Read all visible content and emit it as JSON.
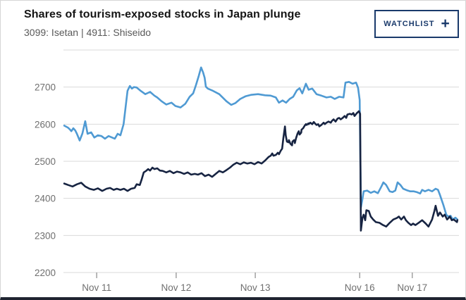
{
  "header": {
    "title": "Shares of tourism-exposed stocks in Japan plunge",
    "subtitle": "3099: Isetan | 4911: Shiseido",
    "watchlist_button": {
      "label": "WATCHLIST",
      "plus_glyph": "+"
    }
  },
  "colors": {
    "accent_navy": "#1a3a6b",
    "series_blue": "#4f9ad3",
    "series_dark_navy": "#172442",
    "gridline": "#d9d9d9",
    "axis_text": "#6f6f6f",
    "tick_mark": "#8a8a8a",
    "title_text": "#141414",
    "subtitle_text": "#595959",
    "bottom_bar": "#1f2430"
  },
  "chart_data": {
    "type": "line",
    "title": "Shares of tourism-exposed stocks in Japan plunge",
    "xlabel": "",
    "ylabel": "",
    "ylim": [
      2200,
      2800
    ],
    "grid": "horizontal",
    "legend_position": "none",
    "y_ticks": [
      2200,
      2300,
      2400,
      2500,
      2600,
      2700
    ],
    "x_axis_note": "intraday prices, Nov 10 - Nov 17 trading sessions; pos = fraction of plot width",
    "x_ticks": [
      {
        "label": "Nov 11",
        "pos": 0.084
      },
      {
        "label": "Nov 12",
        "pos": 0.285
      },
      {
        "label": "Nov 13",
        "pos": 0.485
      },
      {
        "label": "Nov 16",
        "pos": 0.749
      },
      {
        "label": "Nov 17",
        "pos": 0.882
      }
    ],
    "series": [
      {
        "name": "3099: Isetan",
        "color": "#4f9ad3",
        "points": [
          [
            0.002,
            2596
          ],
          [
            0.011,
            2591
          ],
          [
            0.016,
            2586
          ],
          [
            0.02,
            2581
          ],
          [
            0.025,
            2589
          ],
          [
            0.03,
            2583
          ],
          [
            0.034,
            2574
          ],
          [
            0.041,
            2556
          ],
          [
            0.048,
            2575
          ],
          [
            0.055,
            2608
          ],
          [
            0.061,
            2574
          ],
          [
            0.07,
            2578
          ],
          [
            0.078,
            2564
          ],
          [
            0.087,
            2570
          ],
          [
            0.096,
            2568
          ],
          [
            0.105,
            2561
          ],
          [
            0.114,
            2568
          ],
          [
            0.123,
            2564
          ],
          [
            0.13,
            2561
          ],
          [
            0.137,
            2574
          ],
          [
            0.144,
            2570
          ],
          [
            0.152,
            2600
          ],
          [
            0.157,
            2645
          ],
          [
            0.162,
            2690
          ],
          [
            0.168,
            2703
          ],
          [
            0.173,
            2696
          ],
          [
            0.178,
            2700
          ],
          [
            0.185,
            2699
          ],
          [
            0.194,
            2691
          ],
          [
            0.207,
            2681
          ],
          [
            0.219,
            2687
          ],
          [
            0.23,
            2677
          ],
          [
            0.237,
            2672
          ],
          [
            0.248,
            2662
          ],
          [
            0.26,
            2653
          ],
          [
            0.273,
            2658
          ],
          [
            0.283,
            2649
          ],
          [
            0.296,
            2645
          ],
          [
            0.308,
            2655
          ],
          [
            0.319,
            2674
          ],
          [
            0.328,
            2683
          ],
          [
            0.335,
            2705
          ],
          [
            0.342,
            2730
          ],
          [
            0.348,
            2753
          ],
          [
            0.353,
            2740
          ],
          [
            0.357,
            2725
          ],
          [
            0.36,
            2701
          ],
          [
            0.365,
            2696
          ],
          [
            0.376,
            2691
          ],
          [
            0.394,
            2681
          ],
          [
            0.412,
            2662
          ],
          [
            0.424,
            2652
          ],
          [
            0.435,
            2657
          ],
          [
            0.447,
            2668
          ],
          [
            0.46,
            2675
          ],
          [
            0.474,
            2679
          ],
          [
            0.492,
            2681
          ],
          [
            0.51,
            2678
          ],
          [
            0.524,
            2677
          ],
          [
            0.537,
            2672
          ],
          [
            0.545,
            2658
          ],
          [
            0.554,
            2664
          ],
          [
            0.563,
            2658
          ],
          [
            0.572,
            2668
          ],
          [
            0.581,
            2674
          ],
          [
            0.59,
            2691
          ],
          [
            0.597,
            2697
          ],
          [
            0.604,
            2683
          ],
          [
            0.613,
            2709
          ],
          [
            0.62,
            2693
          ],
          [
            0.629,
            2696
          ],
          [
            0.64,
            2681
          ],
          [
            0.652,
            2677
          ],
          [
            0.665,
            2672
          ],
          [
            0.676,
            2674
          ],
          [
            0.686,
            2668
          ],
          [
            0.697,
            2674
          ],
          [
            0.708,
            2672
          ],
          [
            0.713,
            2712
          ],
          [
            0.722,
            2714
          ],
          [
            0.731,
            2709
          ],
          [
            0.74,
            2712
          ],
          [
            0.745,
            2698
          ],
          [
            0.749,
            2665
          ],
          [
            0.752,
            2375
          ],
          [
            0.756,
            2398
          ],
          [
            0.759,
            2419
          ],
          [
            0.768,
            2421
          ],
          [
            0.777,
            2415
          ],
          [
            0.786,
            2419
          ],
          [
            0.795,
            2414
          ],
          [
            0.804,
            2432
          ],
          [
            0.809,
            2443
          ],
          [
            0.816,
            2436
          ],
          [
            0.825,
            2419
          ],
          [
            0.832,
            2417
          ],
          [
            0.839,
            2421
          ],
          [
            0.845,
            2443
          ],
          [
            0.852,
            2436
          ],
          [
            0.859,
            2426
          ],
          [
            0.868,
            2422
          ],
          [
            0.877,
            2419
          ],
          [
            0.886,
            2419
          ],
          [
            0.893,
            2417
          ],
          [
            0.902,
            2413
          ],
          [
            0.907,
            2423
          ],
          [
            0.914,
            2419
          ],
          [
            0.923,
            2423
          ],
          [
            0.932,
            2419
          ],
          [
            0.941,
            2426
          ],
          [
            0.947,
            2423
          ],
          [
            0.952,
            2409
          ],
          [
            0.961,
            2381
          ],
          [
            0.968,
            2356
          ],
          [
            0.973,
            2351
          ],
          [
            0.979,
            2353
          ],
          [
            0.984,
            2343
          ],
          [
            0.991,
            2348
          ],
          [
            0.996,
            2343
          ]
        ]
      },
      {
        "name": "4911: Shiseido",
        "color": "#172442",
        "points": [
          [
            0.002,
            2440
          ],
          [
            0.012,
            2436
          ],
          [
            0.023,
            2432
          ],
          [
            0.034,
            2438
          ],
          [
            0.045,
            2442
          ],
          [
            0.055,
            2432
          ],
          [
            0.066,
            2426
          ],
          [
            0.077,
            2423
          ],
          [
            0.087,
            2427
          ],
          [
            0.098,
            2420
          ],
          [
            0.109,
            2426
          ],
          [
            0.118,
            2428
          ],
          [
            0.127,
            2423
          ],
          [
            0.135,
            2426
          ],
          [
            0.144,
            2423
          ],
          [
            0.153,
            2426
          ],
          [
            0.162,
            2420
          ],
          [
            0.171,
            2426
          ],
          [
            0.18,
            2428
          ],
          [
            0.185,
            2438
          ],
          [
            0.193,
            2436
          ],
          [
            0.198,
            2452
          ],
          [
            0.203,
            2470
          ],
          [
            0.209,
            2474
          ],
          [
            0.214,
            2479
          ],
          [
            0.219,
            2475
          ],
          [
            0.225,
            2483
          ],
          [
            0.23,
            2479
          ],
          [
            0.237,
            2481
          ],
          [
            0.244,
            2475
          ],
          [
            0.251,
            2474
          ],
          [
            0.26,
            2470
          ],
          [
            0.269,
            2474
          ],
          [
            0.278,
            2468
          ],
          [
            0.287,
            2472
          ],
          [
            0.296,
            2470
          ],
          [
            0.305,
            2466
          ],
          [
            0.314,
            2470
          ],
          [
            0.323,
            2464
          ],
          [
            0.332,
            2466
          ],
          [
            0.34,
            2464
          ],
          [
            0.349,
            2468
          ],
          [
            0.358,
            2460
          ],
          [
            0.367,
            2464
          ],
          [
            0.376,
            2458
          ],
          [
            0.385,
            2466
          ],
          [
            0.394,
            2474
          ],
          [
            0.403,
            2470
          ],
          [
            0.412,
            2476
          ],
          [
            0.421,
            2483
          ],
          [
            0.43,
            2491
          ],
          [
            0.438,
            2496
          ],
          [
            0.447,
            2492
          ],
          [
            0.456,
            2497
          ],
          [
            0.465,
            2494
          ],
          [
            0.474,
            2496
          ],
          [
            0.483,
            2492
          ],
          [
            0.492,
            2498
          ],
          [
            0.501,
            2494
          ],
          [
            0.51,
            2502
          ],
          [
            0.519,
            2512
          ],
          [
            0.524,
            2515
          ],
          [
            0.528,
            2521
          ],
          [
            0.531,
            2515
          ],
          [
            0.537,
            2517
          ],
          [
            0.542,
            2523
          ],
          [
            0.545,
            2519
          ],
          [
            0.549,
            2528
          ],
          [
            0.553,
            2534
          ],
          [
            0.556,
            2562
          ],
          [
            0.56,
            2594
          ],
          [
            0.562,
            2570
          ],
          [
            0.565,
            2553
          ],
          [
            0.569,
            2551
          ],
          [
            0.57,
            2557
          ],
          [
            0.574,
            2547
          ],
          [
            0.578,
            2543
          ],
          [
            0.579,
            2553
          ],
          [
            0.583,
            2557
          ],
          [
            0.585,
            2549
          ],
          [
            0.588,
            2562
          ],
          [
            0.592,
            2575
          ],
          [
            0.595,
            2581
          ],
          [
            0.597,
            2572
          ],
          [
            0.601,
            2577
          ],
          [
            0.602,
            2585
          ],
          [
            0.606,
            2589
          ],
          [
            0.61,
            2596
          ],
          [
            0.613,
            2600
          ],
          [
            0.615,
            2598
          ],
          [
            0.619,
            2602
          ],
          [
            0.62,
            2600
          ],
          [
            0.624,
            2604
          ],
          [
            0.629,
            2600
          ],
          [
            0.633,
            2606
          ],
          [
            0.636,
            2602
          ],
          [
            0.64,
            2598
          ],
          [
            0.644,
            2600
          ],
          [
            0.647,
            2594
          ],
          [
            0.652,
            2598
          ],
          [
            0.658,
            2604
          ],
          [
            0.661,
            2600
          ],
          [
            0.665,
            2604
          ],
          [
            0.67,
            2607
          ],
          [
            0.676,
            2604
          ],
          [
            0.679,
            2609
          ],
          [
            0.683,
            2613
          ],
          [
            0.688,
            2607
          ],
          [
            0.693,
            2615
          ],
          [
            0.697,
            2617
          ],
          [
            0.701,
            2613
          ],
          [
            0.706,
            2617
          ],
          [
            0.711,
            2622
          ],
          [
            0.715,
            2617
          ],
          [
            0.718,
            2626
          ],
          [
            0.724,
            2628
          ],
          [
            0.729,
            2626
          ],
          [
            0.733,
            2630
          ],
          [
            0.736,
            2622
          ],
          [
            0.742,
            2630
          ],
          [
            0.747,
            2635
          ],
          [
            0.75,
            2628
          ],
          [
            0.752,
            2313
          ],
          [
            0.756,
            2347
          ],
          [
            0.759,
            2356
          ],
          [
            0.763,
            2341
          ],
          [
            0.766,
            2368
          ],
          [
            0.772,
            2366
          ],
          [
            0.777,
            2351
          ],
          [
            0.783,
            2343
          ],
          [
            0.79,
            2336
          ],
          [
            0.799,
            2334
          ],
          [
            0.808,
            2328
          ],
          [
            0.816,
            2324
          ],
          [
            0.825,
            2334
          ],
          [
            0.834,
            2343
          ],
          [
            0.843,
            2347
          ],
          [
            0.848,
            2351
          ],
          [
            0.854,
            2343
          ],
          [
            0.861,
            2351
          ],
          [
            0.866,
            2341
          ],
          [
            0.872,
            2334
          ],
          [
            0.879,
            2328
          ],
          [
            0.884,
            2332
          ],
          [
            0.89,
            2328
          ],
          [
            0.898,
            2334
          ],
          [
            0.907,
            2341
          ],
          [
            0.916,
            2332
          ],
          [
            0.923,
            2324
          ],
          [
            0.932,
            2343
          ],
          [
            0.938,
            2366
          ],
          [
            0.941,
            2380
          ],
          [
            0.947,
            2353
          ],
          [
            0.952,
            2362
          ],
          [
            0.959,
            2351
          ],
          [
            0.964,
            2356
          ],
          [
            0.97,
            2343
          ],
          [
            0.977,
            2351
          ],
          [
            0.982,
            2341
          ],
          [
            0.987,
            2343
          ],
          [
            0.995,
            2336
          ],
          [
            0.996,
            2341
          ]
        ]
      }
    ]
  }
}
